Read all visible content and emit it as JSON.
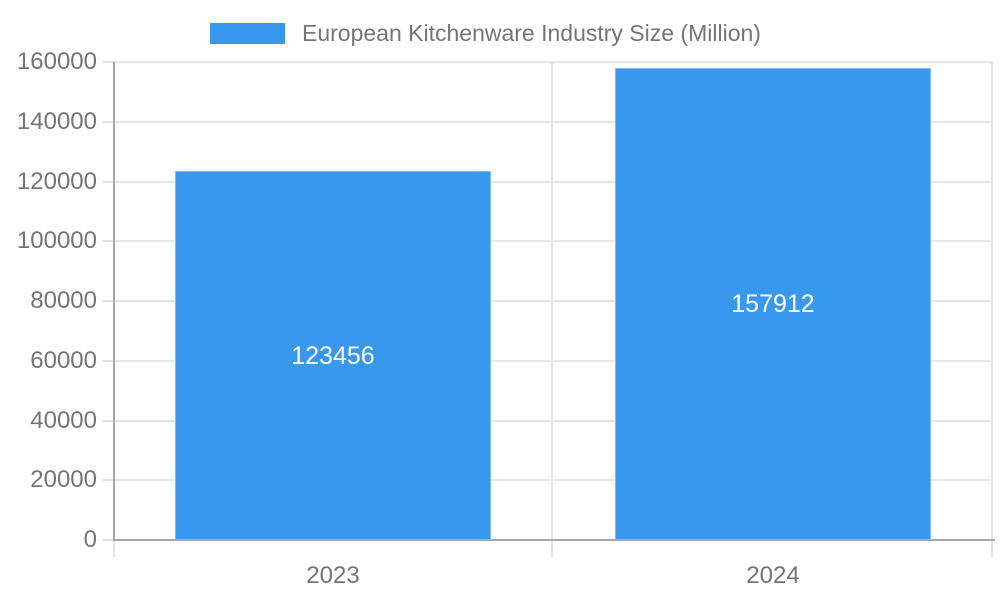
{
  "chart_data": {
    "type": "bar",
    "title": "European Kitchenware Industry Size (Million)",
    "categories": [
      "2023",
      "2024"
    ],
    "series": [
      {
        "name": "European Kitchenware Industry Size (Million)",
        "values": [
          123456,
          157912
        ]
      }
    ],
    "bar_labels": [
      "123456",
      "157912"
    ],
    "xlabel": "",
    "ylabel": "",
    "ylim": [
      0,
      160000
    ],
    "ytick_step": 20000,
    "ytick_labels": [
      "0",
      "20000",
      "40000",
      "60000",
      "80000",
      "100000",
      "120000",
      "140000",
      "160000"
    ],
    "grid": true,
    "legend_position": "top-center",
    "colors": {
      "bar": "#3898ec",
      "bar_label_text": "#ffffff",
      "axis_text": "#757575",
      "gridline": "#e6e6e6",
      "tick": "#e0e0e0",
      "axis_line": "#a6a6a6",
      "background": "#ffffff"
    }
  }
}
